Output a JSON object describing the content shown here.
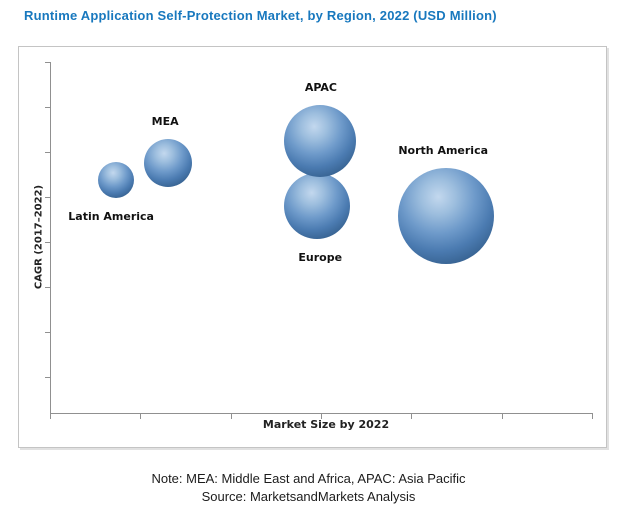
{
  "title": "Runtime Application Self-Protection Market, by Region, 2022 (USD Million)",
  "colors": {
    "title_blue": "#1878be",
    "axis_gray": "#909090",
    "frame_gray": "#c4c4c4",
    "text_dark": "#1c1c1c",
    "bubble_highlight": "#c3d8ee",
    "bubble_light": "#9dbede",
    "bubble_mid_light": "#6e9aca",
    "bubble_mid": "#4b7bb1",
    "bubble_dark": "#35608e",
    "bubble_edge": "#2a4d75"
  },
  "chart_data": {
    "type": "scatter",
    "subtype": "bubble",
    "title": "Runtime Application Self-Protection Market, by Region, 2022 (USD Million)",
    "xlabel": "Market Size by 2022",
    "ylabel": "CAGR (2017–2022)",
    "legend_position": "none",
    "grid": false,
    "x_axis": {
      "numeric_tick_labels": false,
      "tick_count": 7
    },
    "y_axis": {
      "numeric_tick_labels": false,
      "tick_count": 8
    },
    "points": [
      {
        "region": "Latin America",
        "x_frac": 0.122,
        "y_frac": 0.664,
        "radius_px": 18,
        "label_pos": "below",
        "label_dx": -5
      },
      {
        "region": "MEA",
        "x_frac": 0.218,
        "y_frac": 0.712,
        "radius_px": 24,
        "label_pos": "above",
        "label_dx": -3
      },
      {
        "region": "Europe",
        "x_frac": 0.493,
        "y_frac": 0.59,
        "radius_px": 33,
        "label_pos": "below",
        "label_dx": 3
      },
      {
        "region": "APAC",
        "x_frac": 0.498,
        "y_frac": 0.775,
        "radius_px": 36,
        "label_pos": "above",
        "label_dx": 1
      },
      {
        "region": "North America",
        "x_frac": 0.731,
        "y_frac": 0.561,
        "radius_px": 48,
        "label_pos": "above",
        "label_dx": -3
      }
    ]
  },
  "footer": {
    "note": "Note: MEA: Middle East and Africa, APAC: Asia Pacific",
    "source": "Source: MarketsandMarkets Analysis"
  }
}
